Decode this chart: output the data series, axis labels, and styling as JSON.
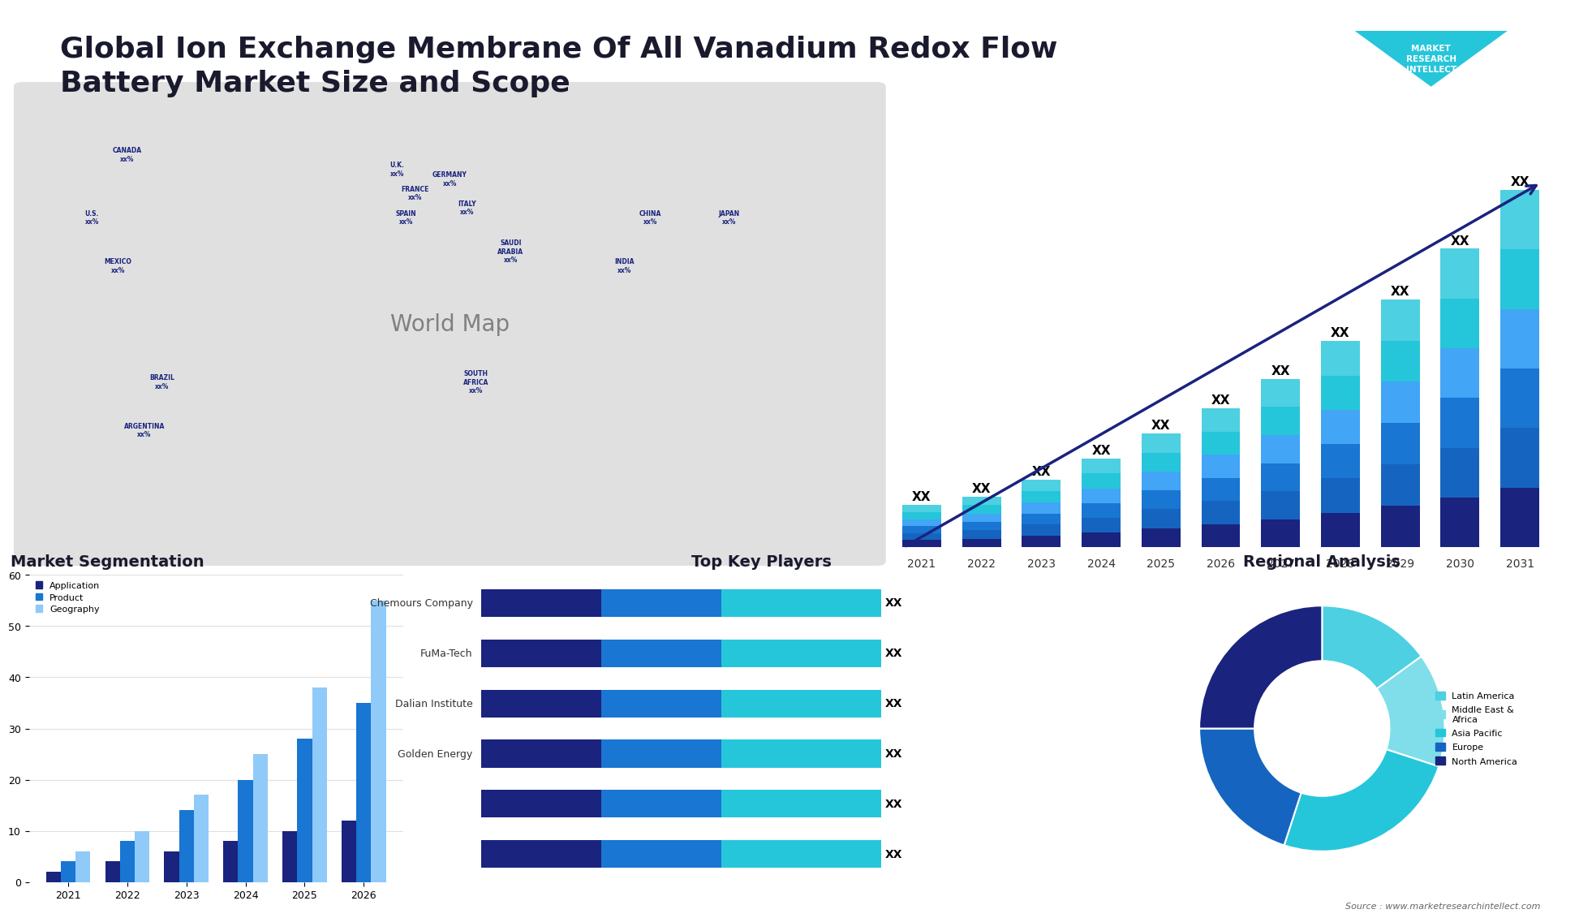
{
  "title": "Global Ion Exchange Membrane Of All Vanadium Redox Flow\nBattery Market Size and Scope",
  "title_fontsize": 26,
  "title_color": "#1a1a2e",
  "background_color": "#ffffff",
  "bar_years": [
    "2021",
    "2022",
    "2023",
    "2024",
    "2025",
    "2026",
    "2027",
    "2028",
    "2029",
    "2030",
    "2031"
  ],
  "bar_segment_colors": [
    "#1a237e",
    "#1565c0",
    "#1976d2",
    "#42a5f5",
    "#26c6da",
    "#4dd0e1"
  ],
  "bar_heights": [
    [
      1,
      1,
      1,
      1,
      1,
      1
    ],
    [
      1.2,
      1.2,
      1.2,
      1.2,
      1.2,
      1.2
    ],
    [
      1.6,
      1.6,
      1.6,
      1.6,
      1.6,
      1.6
    ],
    [
      2.1,
      2.1,
      2.1,
      2.1,
      2.1,
      2.1
    ],
    [
      2.7,
      2.7,
      2.7,
      2.7,
      2.7,
      2.7
    ],
    [
      3.3,
      3.3,
      3.3,
      3.3,
      3.3,
      3.3
    ],
    [
      4.0,
      4.0,
      4.0,
      4.0,
      4.0,
      4.0
    ],
    [
      4.9,
      4.9,
      4.9,
      4.9,
      4.9,
      4.9
    ],
    [
      5.9,
      5.9,
      5.9,
      5.9,
      5.9,
      5.9
    ],
    [
      7.1,
      7.1,
      7.1,
      7.1,
      7.1,
      7.1
    ],
    [
      8.5,
      8.5,
      8.5,
      8.5,
      8.5,
      8.5
    ]
  ],
  "bar_label": "XX",
  "arrow_color": "#1a237e",
  "seg_title": "Market Segmentation",
  "seg_years": [
    "2021",
    "2022",
    "2023",
    "2024",
    "2025",
    "2026"
  ],
  "seg_values_app": [
    2,
    4,
    6,
    8,
    10,
    12
  ],
  "seg_values_prod": [
    4,
    8,
    14,
    20,
    28,
    35
  ],
  "seg_values_geo": [
    6,
    10,
    17,
    25,
    38,
    55
  ],
  "seg_colors": [
    "#1a237e",
    "#1976d2",
    "#90caf9"
  ],
  "seg_legend": [
    "Application",
    "Product",
    "Geography"
  ],
  "seg_ylim": [
    0,
    60
  ],
  "seg_yticks": [
    0,
    10,
    20,
    30,
    40,
    50,
    60
  ],
  "players_title": "Top Key Players",
  "players": [
    "",
    "",
    "Golden Energy",
    "Dalian Institute",
    "FuMa-Tech",
    "Chemours Company"
  ],
  "players_seg1": [
    3,
    3,
    3,
    3,
    3,
    3
  ],
  "players_seg2": [
    3,
    3,
    3,
    3,
    3,
    3
  ],
  "players_seg3": [
    4,
    4,
    4,
    4,
    4,
    4
  ],
  "players_colors": [
    "#1a237e",
    "#1976d2",
    "#26c6da"
  ],
  "players_label": "XX",
  "regional_title": "Regional Analysis",
  "regional_values": [
    15,
    15,
    25,
    20,
    25
  ],
  "regional_colors": [
    "#4dd0e1",
    "#80deea",
    "#26c6da",
    "#1565c0",
    "#1a237e"
  ],
  "regional_legend": [
    "Latin America",
    "Middle East &\nAfrica",
    "Asia Pacific",
    "Europe",
    "North America"
  ],
  "map_countries": [
    "U.S.",
    "CANADA",
    "MEXICO",
    "BRAZIL",
    "ARGENTINA",
    "U.K.",
    "FRANCE",
    "SPAIN",
    "GERMANY",
    "ITALY",
    "SAUDI\nARABIA",
    "SOUTH\nAFRICA",
    "CHINA",
    "JAPAN",
    "INDIA"
  ],
  "map_labels": [
    "xx%",
    "xx%",
    "xx%",
    "xx%",
    "xx%",
    "xx%",
    "xx%",
    "xx%",
    "xx%",
    "xx%",
    "xx%",
    "xx%",
    "xx%",
    "xx%",
    "xx%"
  ],
  "map_color_dark": "#1a237e",
  "map_color_mid": "#1976d2",
  "map_color_light": "#90caf9",
  "source_text": "Source : www.marketresearchintellect.com",
  "logo_text": "MARKET\nRESEARCH\nINTELLECT"
}
